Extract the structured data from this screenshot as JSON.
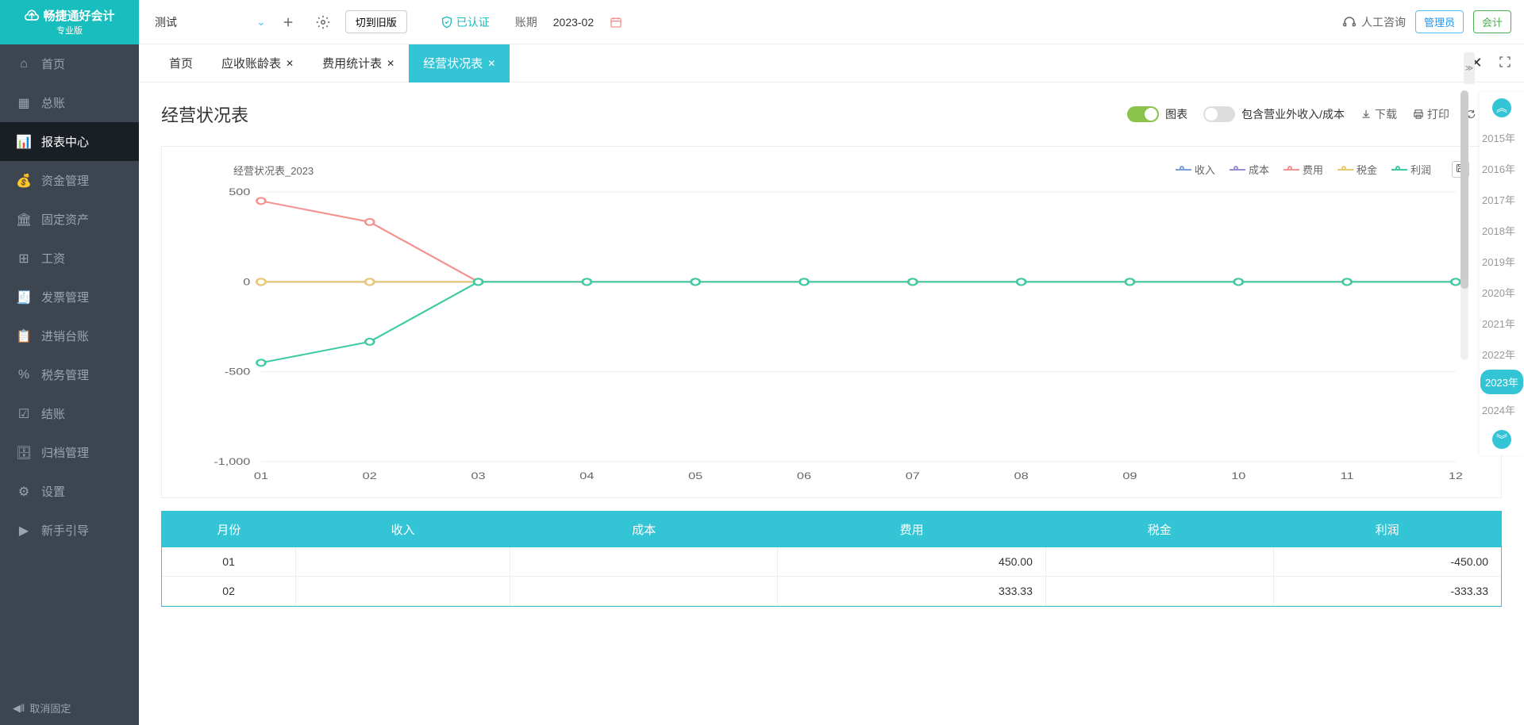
{
  "logo": {
    "text": "畅捷通好会计",
    "sub": "专业版"
  },
  "header": {
    "company": "测试",
    "switch_old": "切到旧版",
    "verified": "已认证",
    "period_label": "账期",
    "period_value": "2023-02",
    "consult": "人工咨询",
    "role1": "管理员",
    "role2": "会计"
  },
  "sidebar": {
    "items": [
      {
        "icon": "⌂",
        "label": "首页"
      },
      {
        "icon": "▦",
        "label": "总账"
      },
      {
        "icon": "📊",
        "label": "报表中心",
        "active": true
      },
      {
        "icon": "💰",
        "label": "资金管理"
      },
      {
        "icon": "🏛",
        "label": "固定资产"
      },
      {
        "icon": "⊞",
        "label": "工资"
      },
      {
        "icon": "🧾",
        "label": "发票管理"
      },
      {
        "icon": "📋",
        "label": "进销台账"
      },
      {
        "icon": "%",
        "label": "税务管理"
      },
      {
        "icon": "☑",
        "label": "结账"
      },
      {
        "icon": "🗄",
        "label": "归档管理"
      },
      {
        "icon": "⚙",
        "label": "设置"
      },
      {
        "icon": "▶",
        "label": "新手引导"
      }
    ],
    "footer": "取消固定"
  },
  "tabs": [
    {
      "label": "首页",
      "closable": false
    },
    {
      "label": "应收账龄表",
      "closable": true
    },
    {
      "label": "费用统计表",
      "closable": true
    },
    {
      "label": "经营状况表",
      "closable": true,
      "active": true
    }
  ],
  "page": {
    "title": "经营状况表",
    "toggle_chart": {
      "label": "图表",
      "on": true
    },
    "toggle_include": {
      "label": "包含营业外收入/成本",
      "on": false
    },
    "download": "下载",
    "print": "打印",
    "refresh": "刷新"
  },
  "chart": {
    "title": "经营状况表_2023",
    "series": [
      {
        "name": "收入",
        "color": "#7b9fd6",
        "values": [
          0,
          0,
          0,
          0,
          0,
          0,
          0,
          0,
          0,
          0,
          0,
          0
        ]
      },
      {
        "name": "成本",
        "color": "#9b8dd1",
        "values": [
          0,
          0,
          0,
          0,
          0,
          0,
          0,
          0,
          0,
          0,
          0,
          0
        ]
      },
      {
        "name": "费用",
        "color": "#f5918e",
        "values": [
          450,
          333,
          0,
          0,
          0,
          0,
          0,
          0,
          0,
          0,
          0,
          0
        ]
      },
      {
        "name": "税金",
        "color": "#ecc871",
        "values": [
          0,
          0,
          0,
          0,
          0,
          0,
          0,
          0,
          0,
          0,
          0,
          0
        ]
      },
      {
        "name": "利润",
        "color": "#3dcba4",
        "values": [
          -450,
          -333,
          0,
          0,
          0,
          0,
          0,
          0,
          0,
          0,
          0,
          0
        ]
      }
    ],
    "x_labels": [
      "01",
      "02",
      "03",
      "04",
      "05",
      "06",
      "07",
      "08",
      "09",
      "10",
      "11",
      "12"
    ],
    "y_ticks": [
      500,
      0,
      -500,
      -1000
    ],
    "grid_color": "#eee",
    "y_min": -1000,
    "y_max": 500
  },
  "table": {
    "columns": [
      "月份",
      "收入",
      "成本",
      "费用",
      "税金",
      "利润"
    ],
    "col_widths": [
      "10%",
      "16%",
      "20%",
      "20%",
      "17%",
      "17%"
    ],
    "rows": [
      [
        "01",
        "",
        "",
        "450.00",
        "",
        "-450.00"
      ],
      [
        "02",
        "",
        "",
        "333.33",
        "",
        "-333.33"
      ]
    ]
  },
  "years": {
    "list": [
      "2015年",
      "2016年",
      "2017年",
      "2018年",
      "2019年",
      "2020年",
      "2021年",
      "2022年",
      "2023年",
      "2024年"
    ],
    "active": "2023年"
  }
}
